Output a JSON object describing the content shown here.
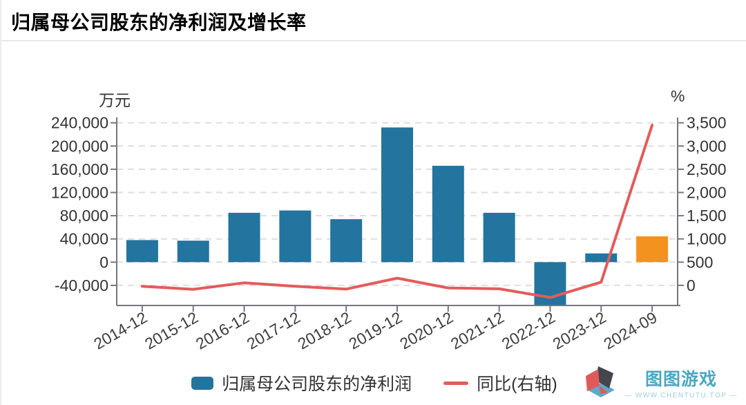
{
  "page": {
    "title": "归属母公司股东的净利润及增长率"
  },
  "chart_data": {
    "type": "bar",
    "categories": [
      "2014-12",
      "2015-12",
      "2016-12",
      "2017-12",
      "2018-12",
      "2019-12",
      "2020-12",
      "2021-12",
      "2022-12",
      "2023-12",
      "2024-09"
    ],
    "series": [
      {
        "name": "归属母公司股东的净利润",
        "type": "bar",
        "axis": "left",
        "unit": "万元",
        "values": [
          38000,
          37000,
          85000,
          89000,
          74000,
          232000,
          166000,
          85000,
          -74000,
          15000,
          44500
        ],
        "bar_color": "#23749E",
        "last_bar_highlight_color": "#F4921F"
      },
      {
        "name": "同比(右轴)",
        "type": "line",
        "axis": "right",
        "unit": "%",
        "values": [
          -20,
          -85,
          55,
          -20,
          -80,
          155,
          -55,
          -75,
          -260,
          70,
          3450
        ],
        "line_color": "#E25C5C"
      }
    ],
    "left_axis": {
      "name": "万元",
      "ticks": [
        240000,
        200000,
        160000,
        120000,
        80000,
        40000,
        0,
        -40000
      ],
      "tick_labels": [
        "240,000",
        "200,000",
        "160,000",
        "120,000",
        "80,000",
        "40,000",
        "0",
        "-40,000"
      ],
      "min": -74600,
      "max": 249000
    },
    "right_axis": {
      "name": "%",
      "ticks": [
        3500,
        3000,
        2500,
        2000,
        1500,
        1000,
        500,
        0
      ],
      "tick_labels": [
        "3,500",
        "3,000",
        "2,500",
        "2,000",
        "1,500",
        "1,000",
        "500",
        "0"
      ],
      "min": -435,
      "max": 3510
    },
    "grid": "horizontal dashed gridlines on",
    "legend_position": "bottom",
    "x_label_rotation_deg": -30,
    "colors": {
      "axis_line": "#75757D",
      "gridline": "#DEDEDE",
      "tick_text": "#333333",
      "x_tick_text": "#3D3D3D"
    }
  },
  "legend": {
    "items": [
      {
        "label": "归属母公司股东的净利润",
        "swatch": "bar",
        "color": "#23749E"
      },
      {
        "label": "同比(右轴)",
        "swatch": "line",
        "color": "#E25C5C"
      }
    ]
  },
  "watermark": {
    "brand": "图图游戏",
    "url": "— WWW.CHENTUTU.TOP —",
    "brand_color": "#4BA7BE",
    "url_color": "#9CCBD8",
    "logo_colors": {
      "red": "#E05A5A",
      "dark": "#45454D",
      "blue": "#5FA8C8"
    }
  }
}
